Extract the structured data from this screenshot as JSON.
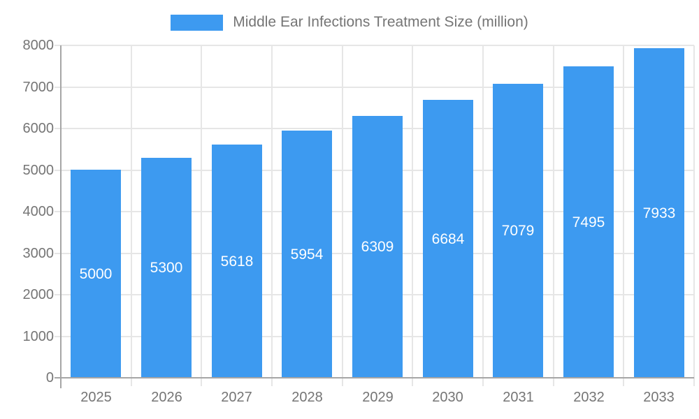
{
  "chart_data": {
    "type": "bar",
    "series_name": "Middle Ear Infections Treatment Size (million)",
    "categories": [
      "2025",
      "2026",
      "2027",
      "2028",
      "2029",
      "2030",
      "2031",
      "2032",
      "2033"
    ],
    "values": [
      5000,
      5300,
      5618,
      5954,
      6309,
      6684,
      7079,
      7495,
      7933
    ],
    "bar_value_labels": [
      "5000",
      "5300",
      "5618",
      "5954",
      "6309",
      "6684",
      "7079",
      "7495",
      "7933"
    ],
    "y_tick_labels": [
      "0",
      "1000",
      "2000",
      "3000",
      "4000",
      "5000",
      "6000",
      "7000",
      "8000"
    ],
    "ylim": [
      0,
      8000
    ],
    "ytick_step": 1000,
    "grid": true,
    "legend_position": "top-center",
    "colors": {
      "bar": "#3D9AF0",
      "bar_label": "#FFFFFF",
      "axis": "#A6A6A6",
      "grid": "#E6E6E6",
      "text": "#757575",
      "background": "#FFFFFF"
    }
  }
}
